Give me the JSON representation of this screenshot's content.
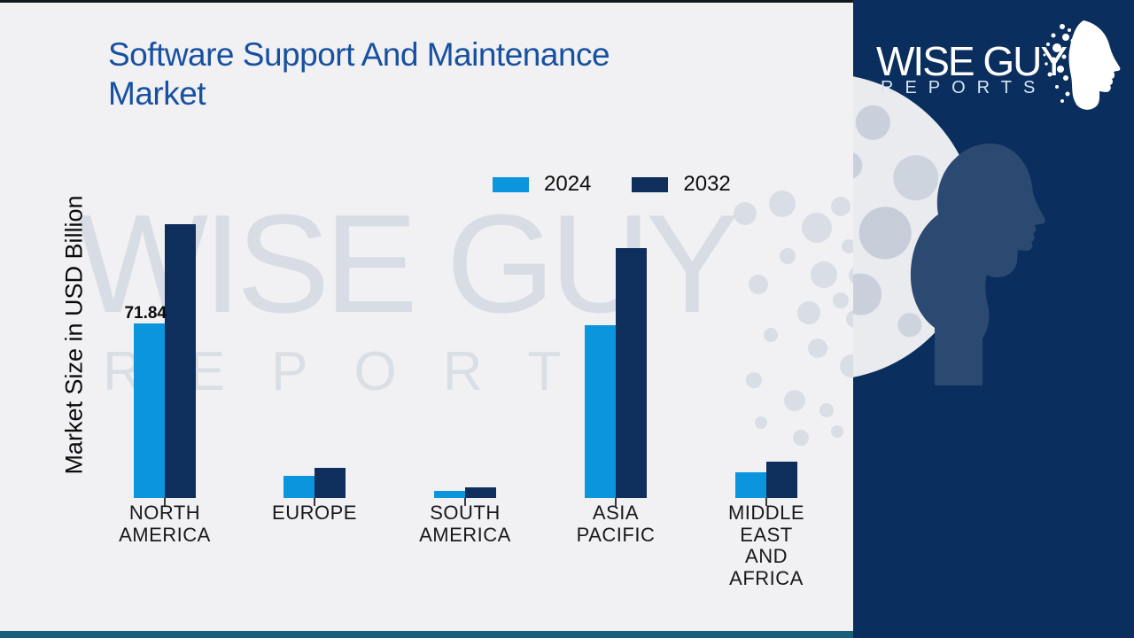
{
  "title": {
    "line1": "Software Support And Maintenance",
    "line2": "Market"
  },
  "brand": {
    "name_top": "WISE GUY",
    "name_bottom": "REPORTS"
  },
  "watermark": {
    "text_top": "WISE GUY",
    "text_bottom": "REPORTS"
  },
  "chart_data": {
    "type": "bar",
    "title": "Software Support And Maintenance Market",
    "ylabel": "Market Size in USD Billion",
    "xlabel": "",
    "ylim": [
      0,
      120
    ],
    "grid": false,
    "legend_position": "top-center",
    "categories": [
      "NORTH AMERICA",
      "EUROPE",
      "SOUTH AMERICA",
      "ASIA PACIFIC",
      "MIDDLE EAST AND AFRICA"
    ],
    "series": [
      {
        "name": "2024",
        "color": "#0b95dd",
        "values": [
          71.84,
          9.1,
          2.9,
          71.1,
          10.6
        ]
      },
      {
        "name": "2032",
        "color": "#0e2e5c",
        "values": [
          112.7,
          12.4,
          4.4,
          102.8,
          15.0
        ]
      }
    ],
    "annotations": [
      {
        "series_index": 0,
        "category_index": 0,
        "text": "71.84"
      }
    ]
  },
  "colors": {
    "background": "#f1f1f3",
    "accent_blue": "#0b95dd",
    "navy": "#0a2e5d",
    "teal_bottom_bar": "#1a5f79",
    "title_blue": "#1750a1",
    "watermark_gray": "#c5ccd8"
  }
}
